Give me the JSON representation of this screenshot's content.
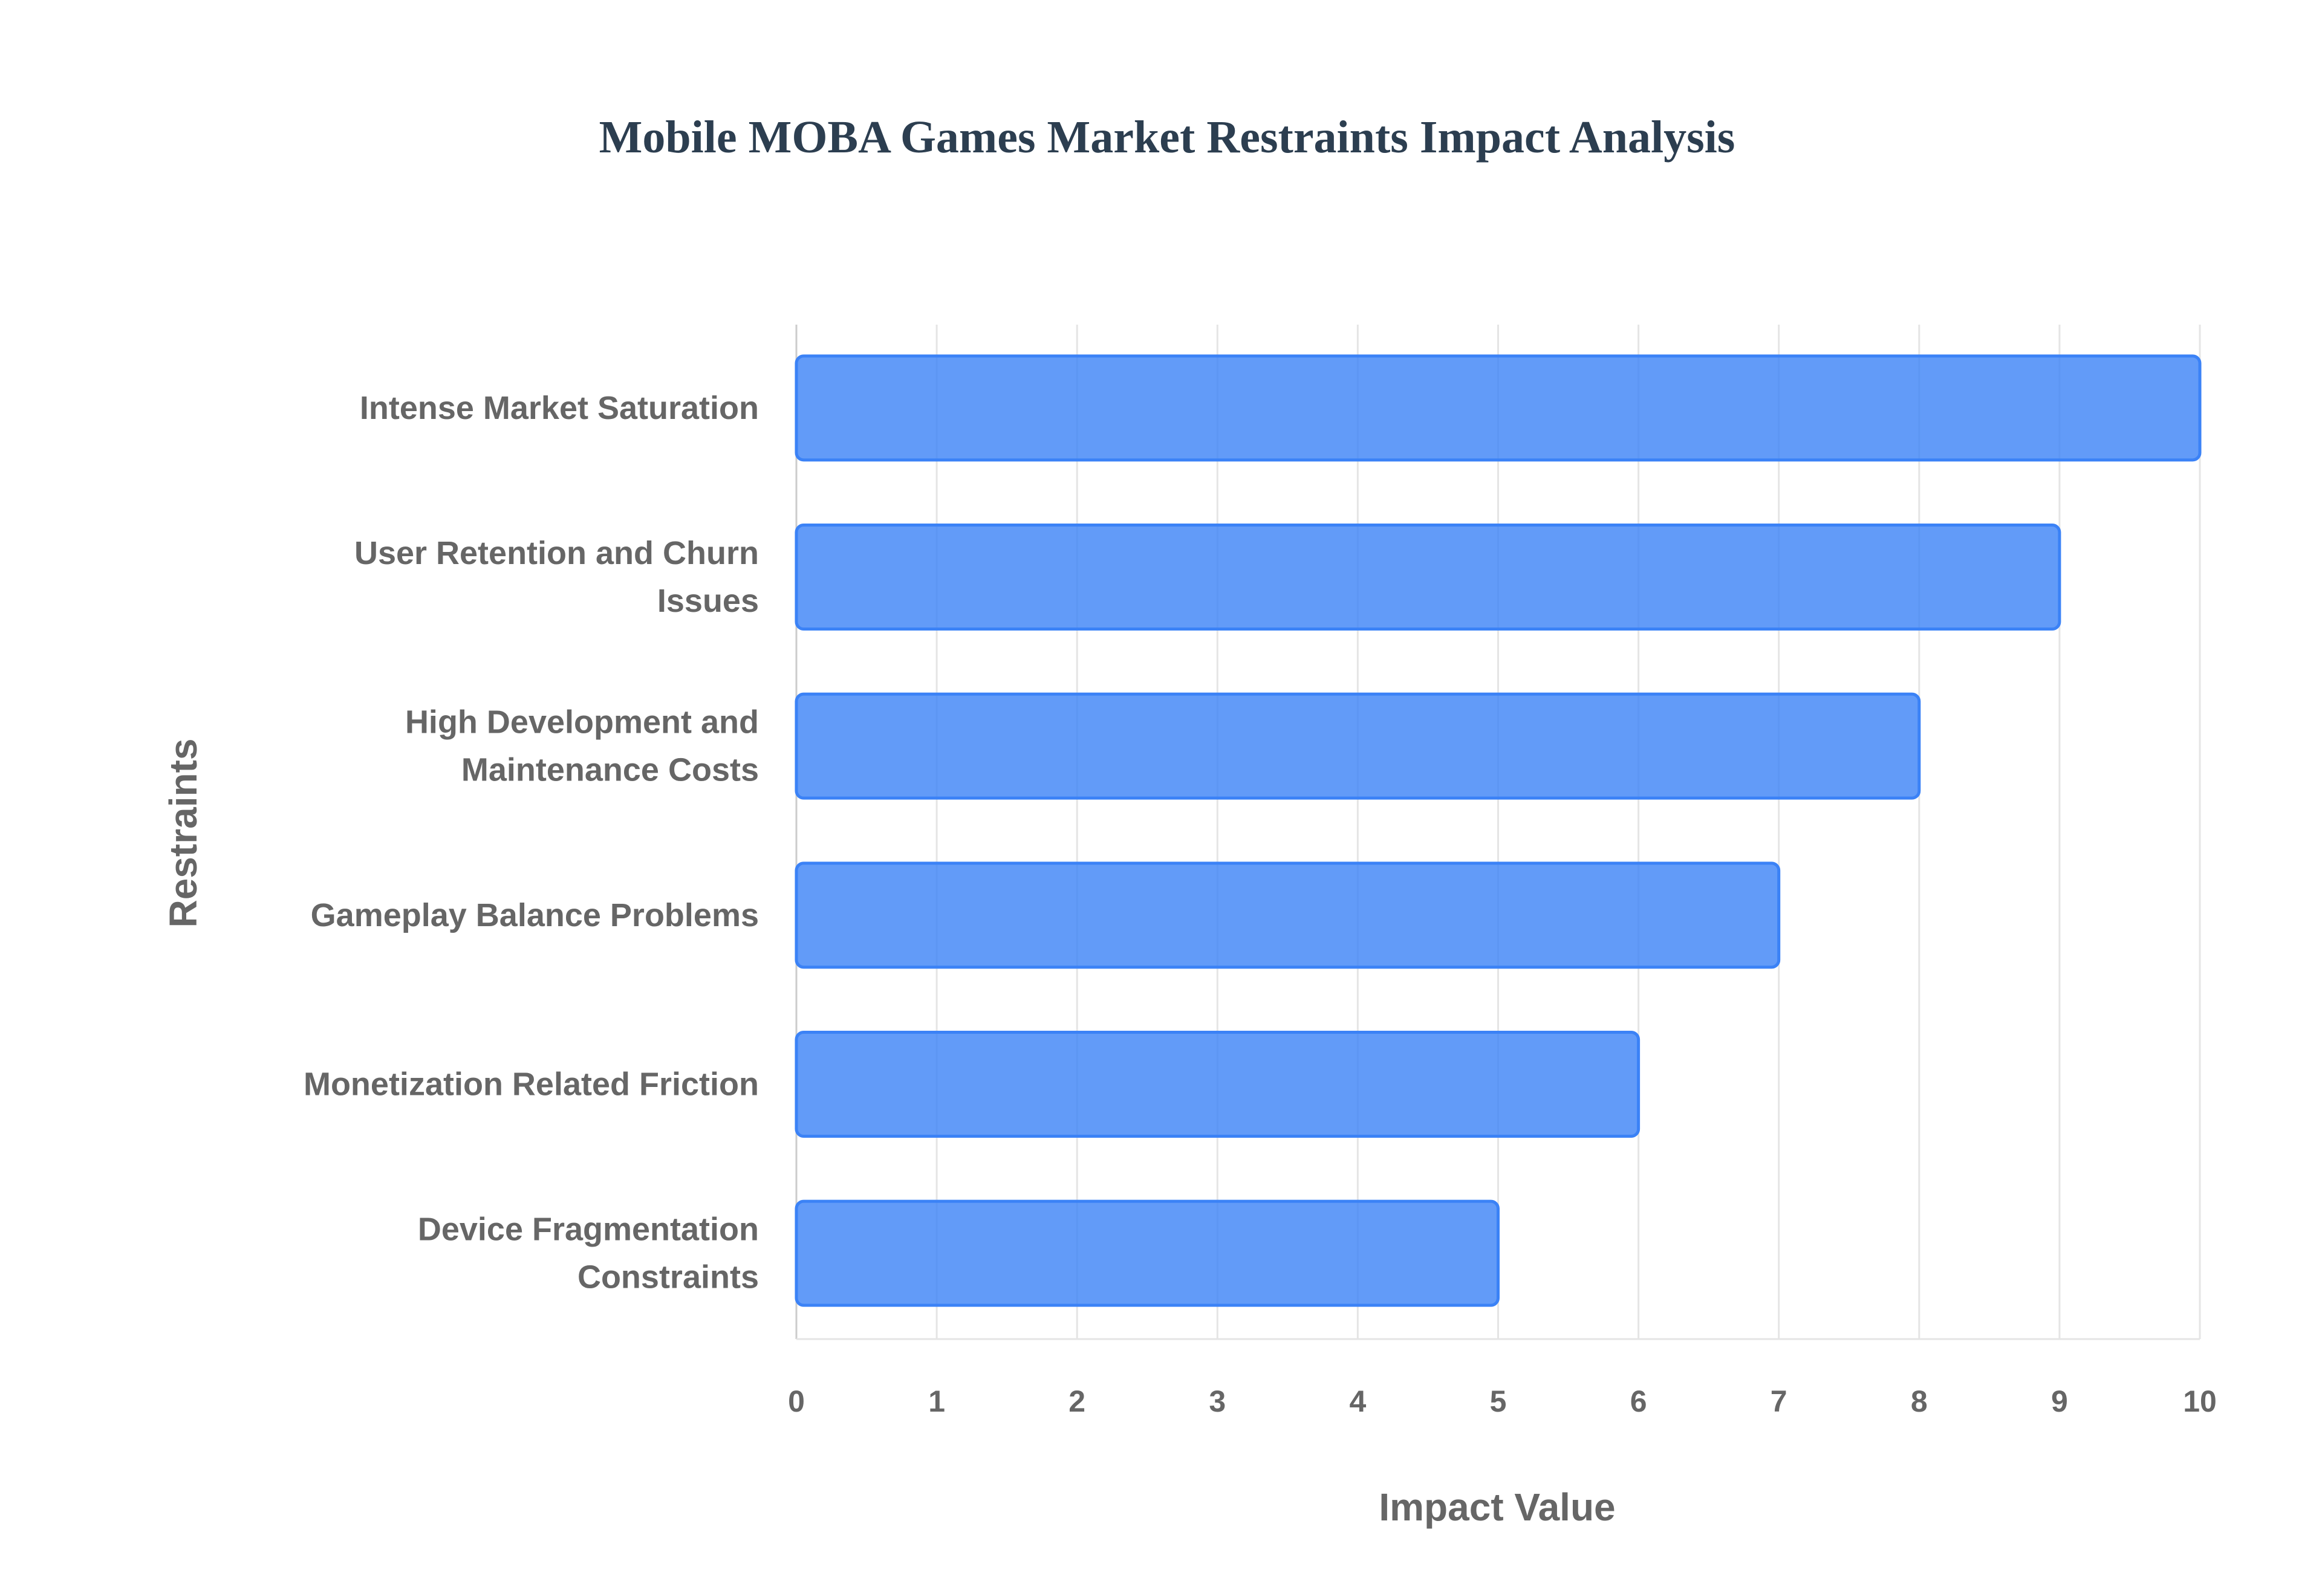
{
  "chart_data": {
    "type": "bar",
    "orientation": "horizontal",
    "title": "Mobile MOBA Games Market Restraints Impact Analysis",
    "xlabel": "Impact Value",
    "ylabel": "Restraints",
    "categories": [
      "Intense Market Saturation",
      "User Retention and Churn Issues",
      "High Development and Maintenance Costs",
      "Gameplay Balance Problems",
      "Monetization Related Friction",
      "Device Fragmentation Constraints"
    ],
    "category_lines": [
      [
        "Intense Market Saturation"
      ],
      [
        "User Retention and Churn",
        "Issues"
      ],
      [
        "High Development and",
        "Maintenance Costs"
      ],
      [
        "Gameplay Balance Problems"
      ],
      [
        "Monetization Related Friction"
      ],
      [
        "Device Fragmentation",
        "Constraints"
      ]
    ],
    "values": [
      10,
      9,
      8,
      7,
      6,
      5
    ],
    "xlim": [
      0,
      10
    ],
    "xticks": [
      "0",
      "1",
      "2",
      "3",
      "4",
      "5",
      "6",
      "7",
      "8",
      "9",
      "10"
    ],
    "grid": true,
    "colors": {
      "bar_fill": "#3b82f6",
      "bar_border": "#3b82f6",
      "text": "#666666",
      "title": "#2c3e50",
      "grid": "#e5e5e5"
    }
  }
}
